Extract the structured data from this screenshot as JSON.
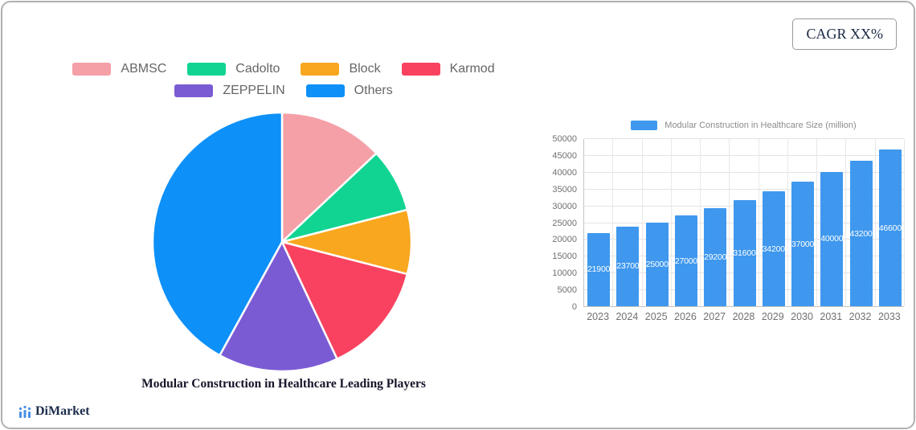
{
  "page": {
    "cagr_button": "CAGR XX%",
    "brand": "DiMarket"
  },
  "chart_data": [
    {
      "type": "pie",
      "title": "Modular Construction in Healthcare Leading Players",
      "labels": [
        "ABMSC",
        "Cadolto",
        "Block",
        "Karmod",
        "ZEPPELIN",
        "Others"
      ],
      "values": [
        13,
        8,
        8,
        14,
        15,
        42
      ],
      "colors": [
        "#F4A0A6",
        "#11D493",
        "#F9A71F",
        "#F9425F",
        "#7B5BD4",
        "#0D90F8"
      ],
      "legend_rows": [
        [
          0,
          1,
          2,
          3
        ],
        [
          4,
          5
        ]
      ],
      "legend_position": "top",
      "start_angle_deg": 0,
      "direction": "clockwise"
    },
    {
      "type": "bar",
      "categories": [
        "2023",
        "2024",
        "2025",
        "2026",
        "2027",
        "2028",
        "2029",
        "2030",
        "2031",
        "2032",
        "2033"
      ],
      "series": [
        {
          "name": "Modular Construction in Healthcare Size (million)",
          "values": [
            21900,
            23700,
            25000,
            27000,
            29200,
            31600,
            34200,
            37000,
            40000,
            43200,
            46600
          ]
        }
      ],
      "bar_color": "#3F98EE",
      "value_label_color": "#ffffff",
      "ylim": [
        0,
        50000
      ],
      "ytick_step": 5000,
      "grid": true,
      "legend_position": "top"
    }
  ]
}
